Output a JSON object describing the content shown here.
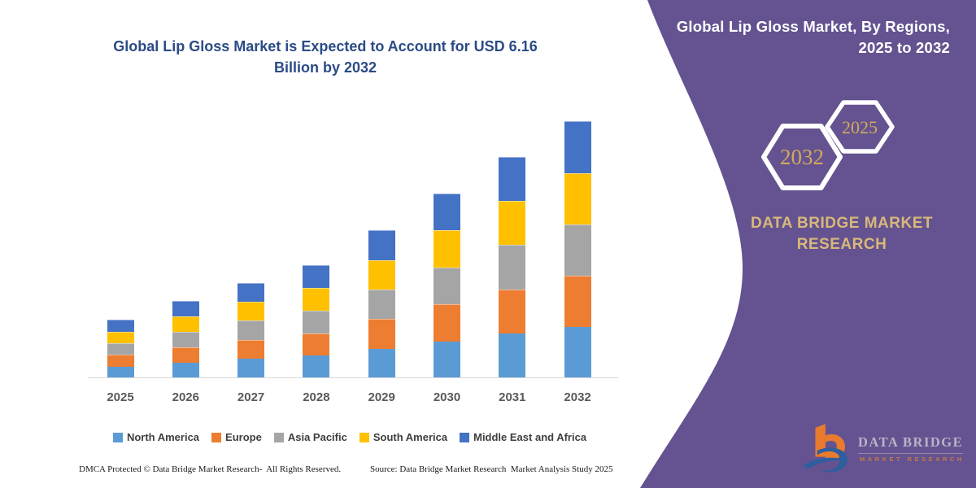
{
  "chart": {
    "title_line1": "Global Lip Gloss Market is Expected to Account for USD 6.16",
    "title_line2": "Billion by 2032",
    "title_color": "#2B4B86"
  },
  "chart_data": {
    "type": "bar",
    "stacked": true,
    "title": "Global Lip Gloss Market is Expected to Account for USD 6.16 Billion by 2032",
    "unit": "USD Billion",
    "categories": [
      "2025",
      "2026",
      "2027",
      "2028",
      "2029",
      "2030",
      "2031",
      "2032"
    ],
    "series": [
      {
        "name": "North America",
        "color": "#5B9BD5",
        "values": [
          0.26,
          0.36,
          0.45,
          0.53,
          0.7,
          0.88,
          1.06,
          1.23
        ]
      },
      {
        "name": "Europe",
        "color": "#ED7D31",
        "values": [
          0.27,
          0.36,
          0.45,
          0.53,
          0.7,
          0.88,
          1.06,
          1.23
        ]
      },
      {
        "name": "Asia Pacific",
        "color": "#A5A5A5",
        "values": [
          0.26,
          0.35,
          0.44,
          0.53,
          0.7,
          0.88,
          1.06,
          1.23
        ]
      },
      {
        "name": "South America",
        "color": "#FFC000",
        "values": [
          0.26,
          0.35,
          0.44,
          0.53,
          0.7,
          0.88,
          1.06,
          1.23
        ]
      },
      {
        "name": "Middle East and Africa",
        "color": "#4472C4",
        "values": [
          0.27,
          0.36,
          0.44,
          0.53,
          0.71,
          0.87,
          1.05,
          1.24
        ]
      }
    ],
    "totals": [
      1.32,
      1.78,
      2.22,
      2.65,
      3.51,
      4.39,
      5.29,
      6.16
    ],
    "ylim": [
      0,
      6.3
    ],
    "grid": false,
    "y_axis_visible": false,
    "legend_position": "bottom"
  },
  "footer": {
    "left": "DMCA Protected © Data Bridge Market Research-  All Rights Reserved.",
    "source": "Source: Data Bridge Market Research  Market Analysis Study 2025"
  },
  "panel": {
    "background": "#645390",
    "title": "Global Lip Gloss Market, By Regions, 2025 to 2032",
    "hexagons": [
      {
        "label": "2032"
      },
      {
        "label": "2025"
      }
    ],
    "brand_text": "DATA BRIDGE MARKET RESEARCH",
    "accent_gold": "#D9B87A",
    "logo": {
      "name": "DATA BRIDGE",
      "tagline": "MARKET RESEARCH"
    }
  }
}
